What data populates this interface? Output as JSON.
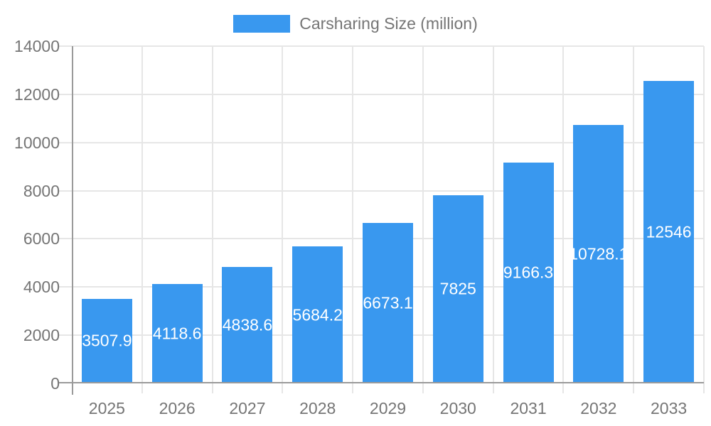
{
  "legend": {
    "label": "Carsharing Size (million)"
  },
  "colors": {
    "bar": "#3998EF",
    "bar_label": "#ffffff",
    "axis_line": "#9a9a9a",
    "gridline": "#e6e6e6",
    "text": "#757575",
    "background": "#ffffff"
  },
  "chart_data": {
    "type": "bar",
    "title": "Carsharing Size (million)",
    "categories": [
      "2025",
      "2026",
      "2027",
      "2028",
      "2029",
      "2030",
      "2031",
      "2032",
      "2033"
    ],
    "series": [
      {
        "name": "Carsharing Size (million)",
        "values": [
          3507.9,
          4118.6,
          4838.6,
          5684.2,
          6673.1,
          7825,
          9166.3,
          10728.1,
          12546
        ]
      }
    ],
    "bar_labels": [
      "3507.9",
      "4118.6",
      "4838.6",
      "5684.2",
      "6673.1",
      "7825",
      "9166.3",
      "10728.1",
      "12546"
    ],
    "xlabel": "",
    "ylabel": "",
    "ylim": [
      0,
      14000
    ],
    "ytick_step": 2000,
    "ytick_labels": [
      "0",
      "2000",
      "4000",
      "6000",
      "8000",
      "10000",
      "12000",
      "14000"
    ],
    "grid": true,
    "legend_position": "top",
    "bar_label_position": "center"
  }
}
